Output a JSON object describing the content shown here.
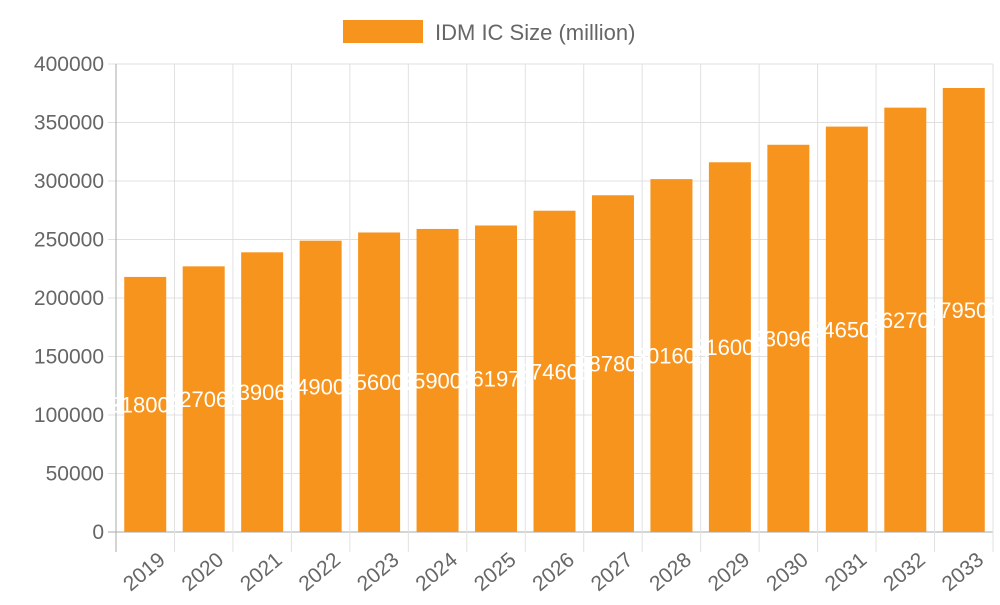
{
  "chart_data": {
    "type": "bar",
    "title": "",
    "xlabel": "",
    "ylabel": "",
    "legend": {
      "position": "top",
      "entries": [
        "IDM IC Size (million)"
      ]
    },
    "categories": [
      "2019",
      "2020",
      "2021",
      "2022",
      "2023",
      "2024",
      "2025",
      "2026",
      "2027",
      "2028",
      "2029",
      "2030",
      "2031",
      "2032",
      "2033"
    ],
    "series": [
      {
        "name": "IDM IC Size (million)",
        "color": "#f7941e",
        "values": [
          218000,
          227060,
          239060,
          249000,
          256000,
          259000,
          261970,
          274600,
          287800,
          301600,
          316000,
          330960,
          346500,
          362700,
          379500
        ]
      }
    ],
    "ylim": [
      0,
      400000
    ],
    "yticks": [
      0,
      50000,
      100000,
      150000,
      200000,
      250000,
      300000,
      350000,
      400000
    ],
    "grid": true,
    "data_labels": true,
    "data_label_color": "#ffffff"
  }
}
